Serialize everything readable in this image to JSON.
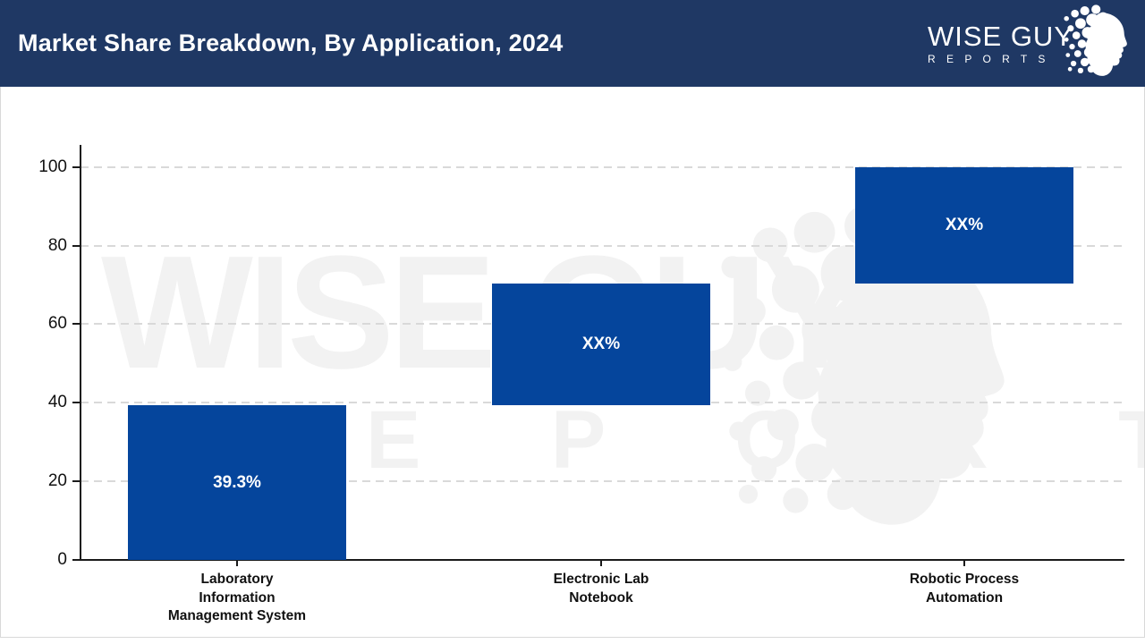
{
  "header": {
    "title": "Market Share Breakdown, By Application, 2024",
    "logo": {
      "wordmark": "WISE GUY",
      "subtext": "R E P O R T S"
    }
  },
  "watermark": {
    "wordmark": "WISE GUY",
    "subtext": "R E P O R T S"
  },
  "colors": {
    "header_bg": "#1f3864",
    "bar": "#05459c",
    "bar_label": "#ffffff",
    "grid": "#d9d9d9",
    "axis": "#1a1a1a",
    "watermark": "#f2f2f2"
  },
  "chart_data": {
    "type": "bar",
    "subtype": "floating-waterfall",
    "title": "Market Share Breakdown, By Application, 2024",
    "categories": [
      "Laboratory Information Management System",
      "Electronic Lab Notebook",
      "Robotic Process Automation"
    ],
    "categories_lines": [
      [
        "Laboratory",
        "Information",
        "Management System"
      ],
      [
        "Electronic Lab",
        "Notebook"
      ],
      [
        "Robotic Process",
        "Automation"
      ]
    ],
    "segments": [
      {
        "start": 0,
        "end": 39.3,
        "label": "39.3%"
      },
      {
        "start": 39.3,
        "end": 70.4,
        "label": "XX%"
      },
      {
        "start": 70.4,
        "end": 100,
        "label": "XX%"
      }
    ],
    "yticks": [
      0,
      20,
      40,
      60,
      80,
      100
    ],
    "ylim": [
      0,
      106
    ],
    "grid": "horizontal-dashed",
    "legend": "none",
    "xlabel": "",
    "ylabel": ""
  }
}
